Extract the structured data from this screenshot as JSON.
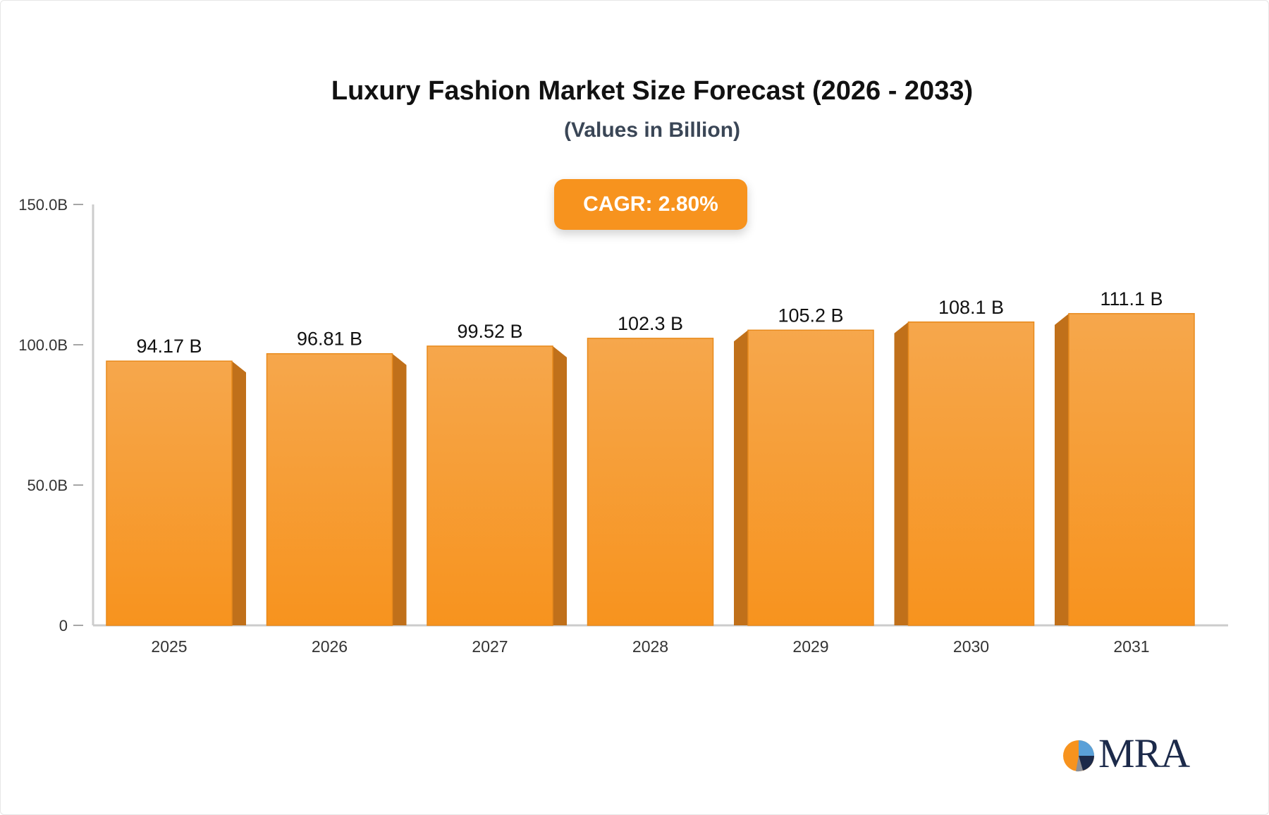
{
  "chart_data": {
    "type": "bar",
    "title": "Luxury Fashion Market Size Forecast (2026 - 2033)",
    "subtitle": "(Values in Billion)",
    "categories": [
      "2025",
      "2026",
      "2027",
      "2028",
      "2029",
      "2030",
      "2031"
    ],
    "values": [
      94.17,
      96.81,
      99.52,
      102.3,
      105.2,
      108.1,
      111.1
    ],
    "value_labels": [
      "94.17 B",
      "96.81 B",
      "99.52 B",
      "102.3 B",
      "105.2 B",
      "108.1 B",
      "111.1 B"
    ],
    "ylim": [
      0,
      150
    ],
    "yticks": [
      0,
      50,
      100,
      150
    ],
    "ytick_labels": [
      "0",
      "50.0B",
      "100.0B",
      "150.0B"
    ],
    "xlabel": "",
    "ylabel": "",
    "grid": false,
    "legend": "none",
    "annotation": "CAGR: 2.80%",
    "colors": {
      "bar_front_top": "#f6a74c",
      "bar_front_bottom": "#f7931e",
      "bar_side": "#c0701a",
      "bar_top": "#f39a2e",
      "axis": "#cccccc",
      "tick_text": "#333333",
      "value_text": "#111111"
    }
  },
  "logo": {
    "text": "MRA",
    "colors": [
      "#f7931e",
      "#1c2a4a",
      "#5aa0d8"
    ]
  }
}
